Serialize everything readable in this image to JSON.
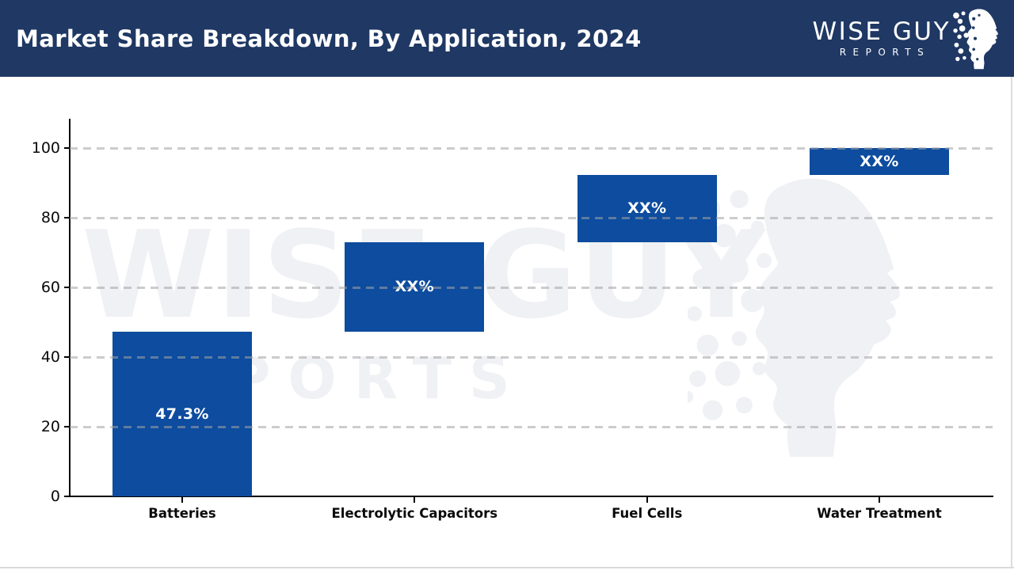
{
  "header": {
    "title": "Market Share Breakdown, By Application, 2024",
    "logo": {
      "line1": "WISE GUY",
      "line2": "REPORTS"
    }
  },
  "watermark": {
    "line1": "WISE GUY",
    "line2": "REPORTS"
  },
  "colors": {
    "header_bg": "#1f3864",
    "bar": "#0d4c9e",
    "bar_label": "#ffffff",
    "grid": "#d9d9d9",
    "axis": "#000000",
    "watermark": "#f0f1f4"
  },
  "chart_data": {
    "type": "bar",
    "subtype": "waterfall-floating-bars",
    "title": "Market Share Breakdown, By Application, 2024",
    "xlabel": "",
    "ylabel": "",
    "categories": [
      "Batteries",
      "Electrolytic Capacitors",
      "Fuel Cells",
      "Water Treatment"
    ],
    "bars": [
      {
        "category": "Batteries",
        "base": 0,
        "top": 47.3,
        "value": 47.3,
        "display": "47.3%"
      },
      {
        "category": "Electrolytic Capacitors",
        "base": 47.3,
        "top": 73.0,
        "value": 25.7,
        "display": "XX%"
      },
      {
        "category": "Fuel Cells",
        "base": 73.0,
        "top": 92.3,
        "value": 19.3,
        "display": "XX%"
      },
      {
        "category": "Water Treatment",
        "base": 92.3,
        "top": 100.0,
        "value": 7.7,
        "display": "XX%"
      }
    ],
    "yticks": [
      0,
      20,
      40,
      60,
      80,
      100
    ],
    "ylim": [
      0,
      108
    ],
    "grid": "horizontal-dashed",
    "legend": "none"
  }
}
